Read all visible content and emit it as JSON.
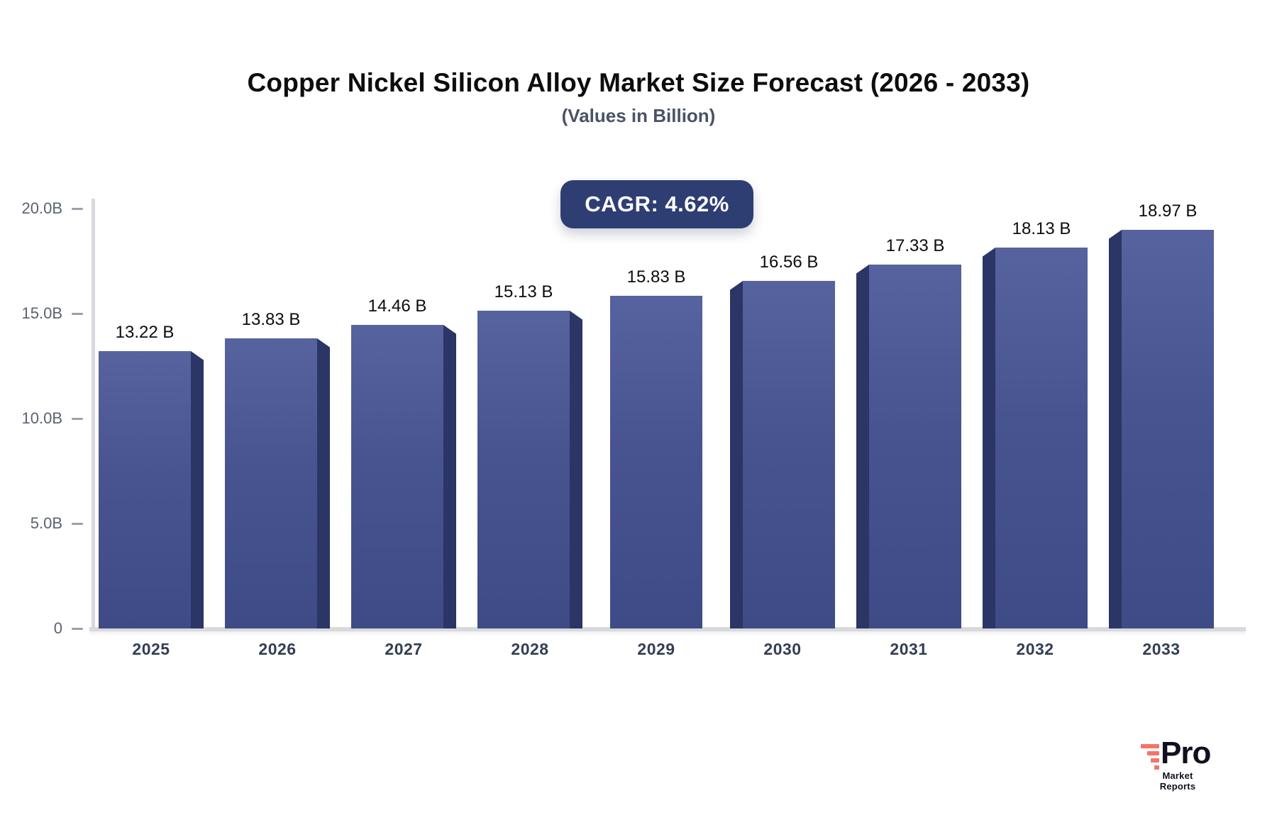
{
  "header": {
    "title": "Copper Nickel Silicon Alloy Market Size Forecast (2026 - 2033)",
    "subtitle": "(Values in Billion)",
    "cagr_badge": "CAGR: 4.62%"
  },
  "chart_data": {
    "type": "bar",
    "title": "Copper Nickel Silicon Alloy Market Size Forecast (2026 - 2033)",
    "subtitle": "(Values in Billion)",
    "annotation": "CAGR: 4.62%",
    "categories": [
      "2025",
      "2026",
      "2027",
      "2028",
      "2029",
      "2030",
      "2031",
      "2032",
      "2033"
    ],
    "values": [
      13.22,
      13.83,
      14.46,
      15.13,
      15.83,
      16.56,
      17.33,
      18.13,
      18.97
    ],
    "value_labels": [
      "13.22 B",
      "13.83 B",
      "14.46 B",
      "15.13 B",
      "15.83 B",
      "16.56 B",
      "17.33 B",
      "18.13 B",
      "18.97 B"
    ],
    "xlabel": "",
    "ylabel": "",
    "ylim": [
      0,
      20
    ],
    "yticks": [
      {
        "value": 20,
        "label": "20.0B"
      },
      {
        "value": 15,
        "label": "15.0B"
      },
      {
        "value": 10,
        "label": "10.0B"
      },
      {
        "value": 5,
        "label": "5.0B"
      },
      {
        "value": 0,
        "label": "0"
      }
    ],
    "grid": false,
    "legend": false,
    "bar_style": "3d-extruded",
    "colors": {
      "bar_face_top": "#56639e",
      "bar_face_mid": "#475490",
      "bar_face_bottom": "#3e4b86",
      "bar_side": "#2b3566",
      "badge_bg": "#2e3e73",
      "badge_text": "#ffffff",
      "axis_line": "#d8d9de",
      "tick_dash": "#9aa0ab",
      "ytick_text": "#5b6270",
      "xtick_text": "#333e53",
      "value_text": "#0c0c10",
      "title_text": "#0d0d0d",
      "subtitle_text": "#4a5365"
    }
  },
  "logo": {
    "name": "Pro",
    "tagline": "Market Reports",
    "accent": "#f3756a"
  }
}
